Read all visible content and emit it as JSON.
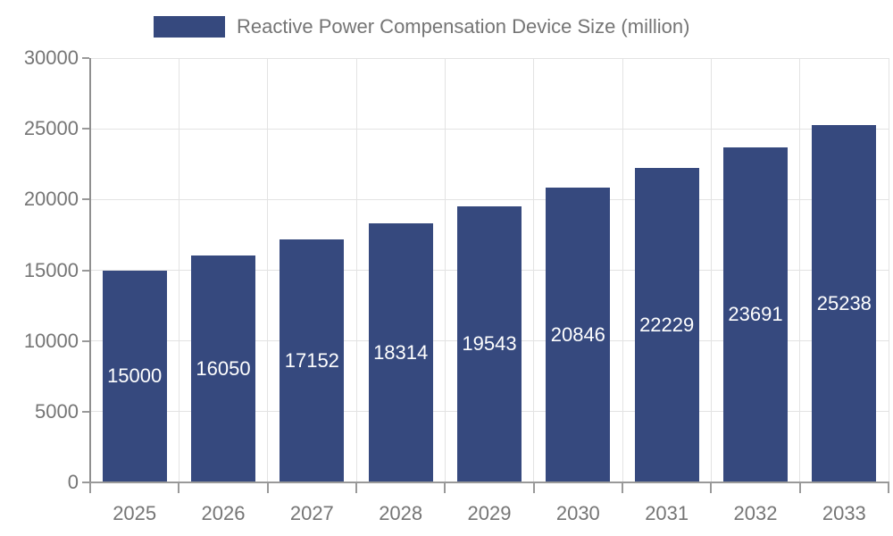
{
  "legend": {
    "label": "Reactive Power Compensation Device Size (million)"
  },
  "chart_data": {
    "type": "bar",
    "title": "",
    "series_name": "Reactive Power Compensation Device Size (million)",
    "categories": [
      "2025",
      "2026",
      "2027",
      "2028",
      "2029",
      "2030",
      "2031",
      "2032",
      "2033"
    ],
    "values": [
      15000,
      16050,
      17152,
      18314,
      19543,
      20846,
      22229,
      23691,
      25238
    ],
    "xlabel": "",
    "ylabel": "",
    "ylim": [
      0,
      30000
    ],
    "yticks": [
      0,
      5000,
      10000,
      15000,
      20000,
      25000,
      30000
    ],
    "grid": true,
    "legend_position": "top",
    "colors": {
      "bar": "#36497E",
      "value_label": "#ffffff",
      "axis_text": "#757575",
      "gridline": "#e3e3e3",
      "axis_line": "#999999"
    }
  }
}
